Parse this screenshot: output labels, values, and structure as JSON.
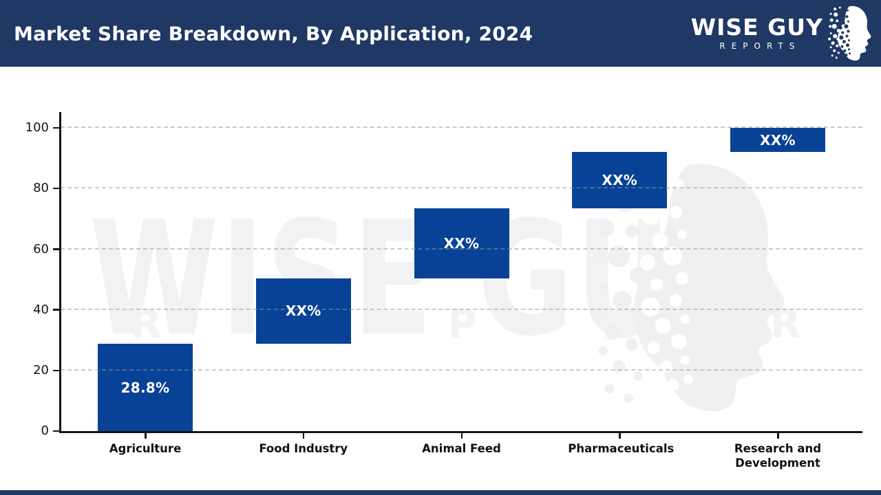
{
  "header": {
    "title": "Market Share Breakdown, By Application, 2024",
    "logo_line1": "WISE GUY",
    "logo_line2": "REPORTS"
  },
  "watermark": {
    "line1": "WISE GUY",
    "line2": "R E P O R T S"
  },
  "chart_data": {
    "type": "bar",
    "subtype": "waterfall",
    "title": "Market Share Breakdown, By Application, 2024",
    "xlabel": "",
    "ylabel": "",
    "categories": [
      "Agriculture",
      "Food Industry",
      "Animal Feed",
      "Pharmaceuticals",
      "Research and Development"
    ],
    "segments": [
      {
        "category": "Agriculture",
        "start": 0,
        "end": 28.8,
        "label": "28.8%"
      },
      {
        "category": "Food Industry",
        "start": 28.8,
        "end": 50.4,
        "label": "XX%"
      },
      {
        "category": "Animal Feed",
        "start": 50.4,
        "end": 73.5,
        "label": "XX%"
      },
      {
        "category": "Pharmaceuticals",
        "start": 73.5,
        "end": 92.1,
        "label": "XX%"
      },
      {
        "category": "Research and Development",
        "start": 92.1,
        "end": 100,
        "label": "XX%"
      }
    ],
    "yticks": [
      0,
      20,
      40,
      60,
      80,
      100
    ],
    "ylim": [
      0,
      104.8
    ],
    "grid": "horizontal-dashed",
    "legend": "none",
    "bar_color": "#084296",
    "bar_label_color": "#ffffff",
    "axis_color": "#151515",
    "header_bg_color": "#1f3864"
  }
}
